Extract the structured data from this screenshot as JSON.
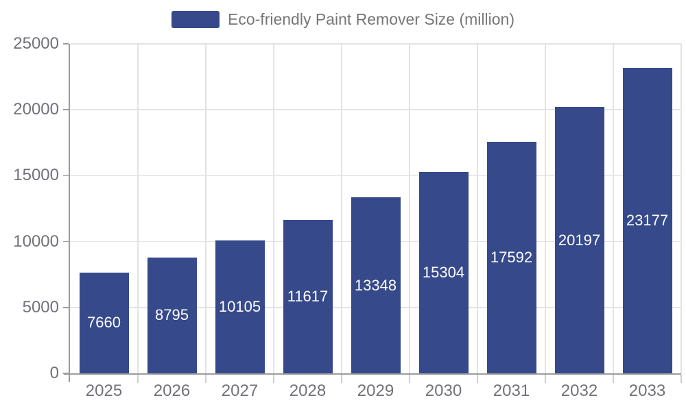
{
  "chart_data": {
    "type": "bar",
    "title": "Eco-friendly Paint Remover Size (million)",
    "categories": [
      "2025",
      "2026",
      "2027",
      "2028",
      "2029",
      "2030",
      "2031",
      "2032",
      "2033"
    ],
    "series": [
      {
        "name": "Eco-friendly Paint Remover Size (million)",
        "values": [
          7660,
          8795,
          10105,
          11617,
          13348,
          15304,
          17592,
          20197,
          23177
        ]
      }
    ],
    "xlabel": "",
    "ylabel": "",
    "ylim": [
      0,
      25000
    ],
    "yticks": [
      0,
      5000,
      10000,
      15000,
      20000,
      25000
    ],
    "grid": "horizontal-and-vertical",
    "legend_position": "top-center",
    "bar_color": "#36498a",
    "value_label_color": "#ffffff",
    "axis_text_color": "#71717a",
    "grid_color": "#e2e2e7",
    "axis_line_color": "#9c9c9c",
    "background": "#ffffff"
  }
}
